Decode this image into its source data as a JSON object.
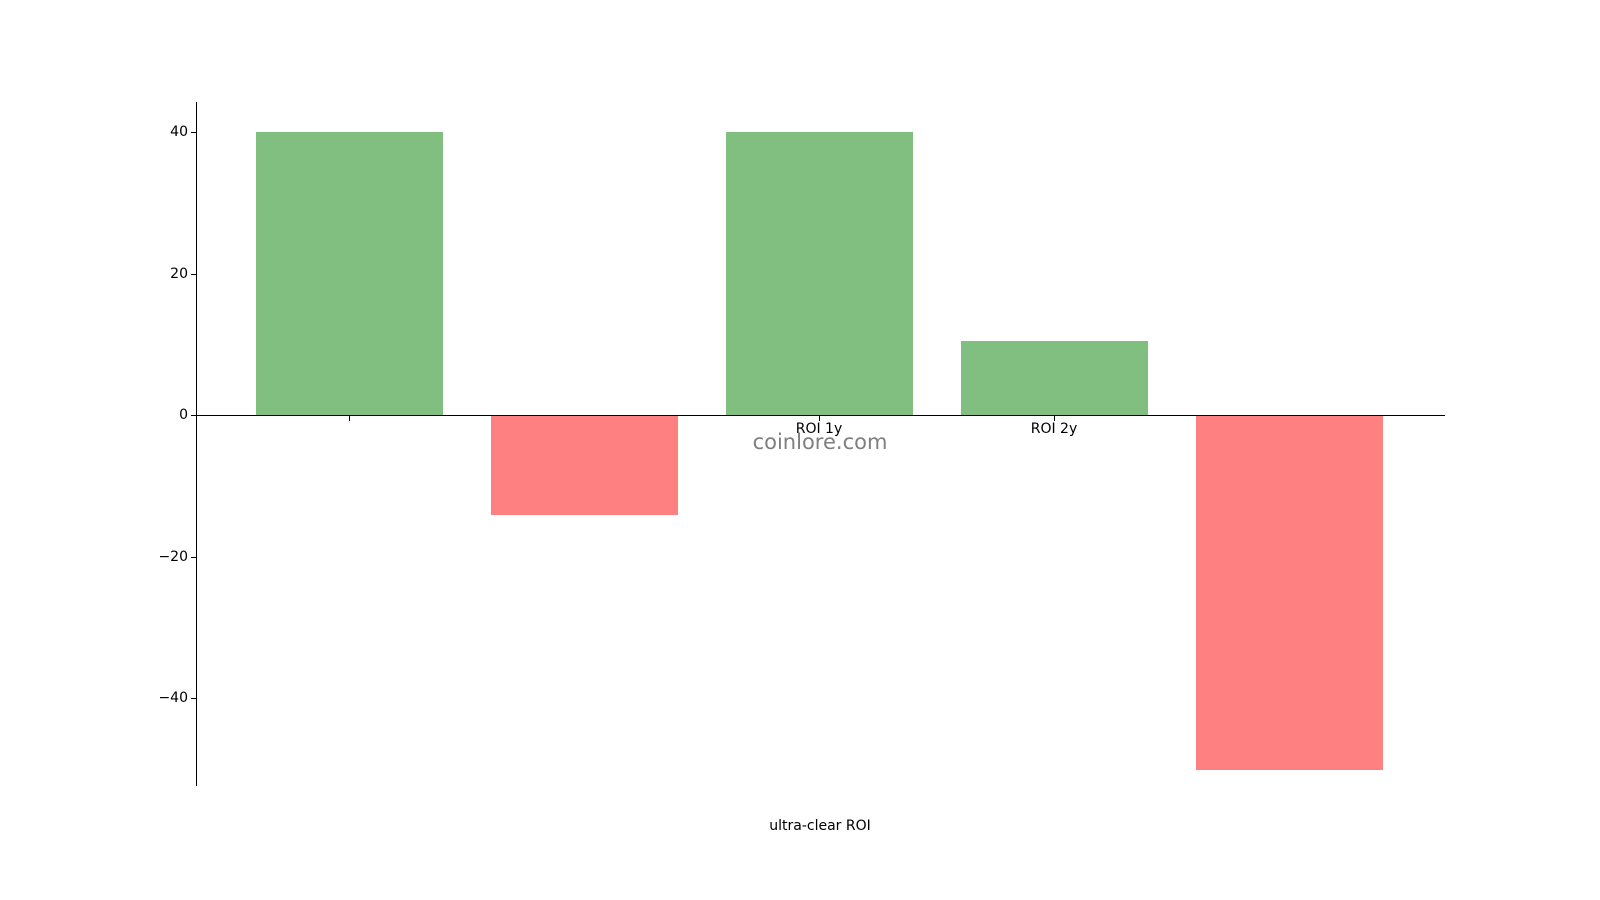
{
  "page": {
    "background_color": "#ffffff"
  },
  "chart_data": {
    "type": "bar",
    "title": "",
    "xlabel": "ultra-clear ROI",
    "ylabel": "",
    "watermark": "coinlore.com",
    "categories": [
      "",
      "",
      "ROI 1y",
      "ROI 2y",
      ""
    ],
    "values": [
      40,
      -14,
      40,
      10.5,
      -50
    ],
    "bar_colors": [
      "#80bf80",
      "#ff8080",
      "#80bf80",
      "#80bf80",
      "#ff8080"
    ],
    "positive_color": "#80bf80",
    "negative_color": "#ff8080",
    "y_ticks": [
      {
        "value": 40,
        "label": "40"
      },
      {
        "value": 20,
        "label": "20"
      },
      {
        "value": 0,
        "label": "0"
      },
      {
        "value": -20,
        "label": "−20"
      },
      {
        "value": -40,
        "label": "−40"
      }
    ],
    "ylim": [
      -52.5,
      44.2
    ],
    "grid": false,
    "legend": null,
    "axis_color": "#000000",
    "tick_label_color": "#000000",
    "watermark_color": "#7f7f7f"
  }
}
